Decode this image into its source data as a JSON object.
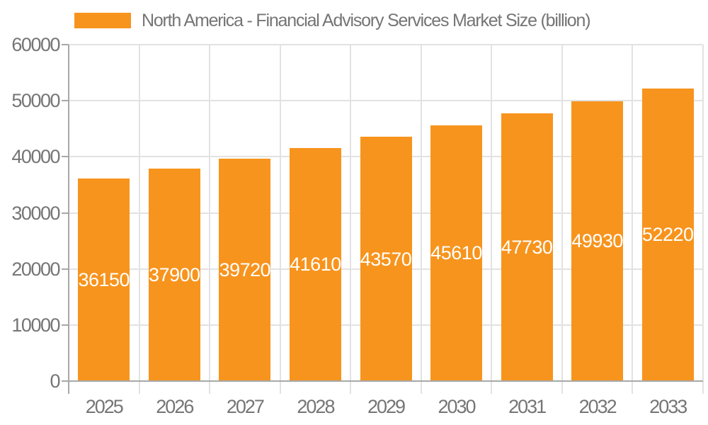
{
  "legend": {
    "label": "North America - Financial Advisory Services Market Size (billion)"
  },
  "chart_data": {
    "type": "bar",
    "title": "North America - Financial Advisory Services Market Size (billion)",
    "categories": [
      "2025",
      "2026",
      "2027",
      "2028",
      "2029",
      "2030",
      "2031",
      "2032",
      "2033"
    ],
    "values": [
      36150,
      37900,
      39720,
      41610,
      43570,
      45610,
      47730,
      49930,
      52220
    ],
    "series": [
      {
        "name": "North America - Financial Advisory Services Market Size (billion)",
        "values": [
          36150,
          37900,
          39720,
          41610,
          43570,
          45610,
          47730,
          49930,
          52220
        ]
      }
    ],
    "xlabel": "",
    "ylabel": "",
    "ylim": [
      0,
      60000
    ],
    "yticks": [
      0,
      10000,
      20000,
      30000,
      40000,
      50000,
      60000
    ],
    "grid": true,
    "legend_position": "top-left",
    "value_labels": "inside-center",
    "bar_color": "#F7941D",
    "value_label_color": "#FFFFFF"
  },
  "colors": {
    "bar": "#F7941D",
    "gridline": "#E2E2E2",
    "axis": "#A8A8A8",
    "tick_text": "#757575",
    "background": "#FFFFFF"
  }
}
